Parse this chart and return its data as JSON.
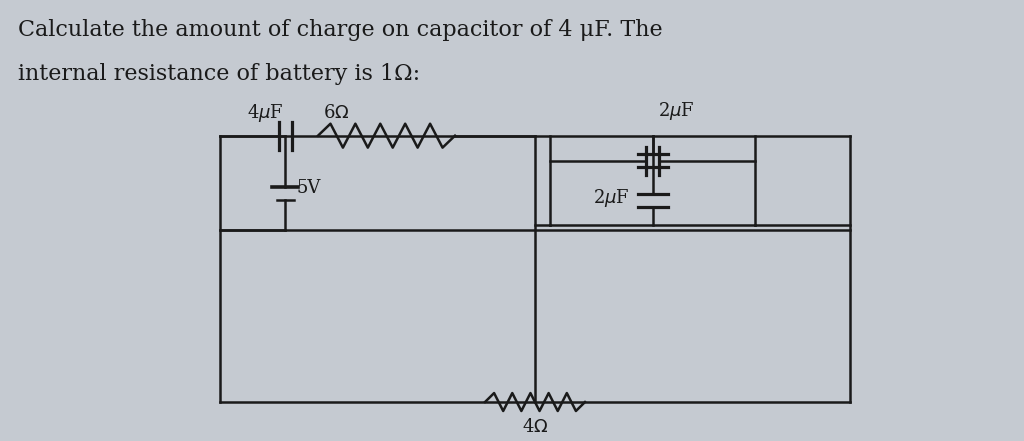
{
  "title_line1": "Calculate the amount of charge on capacitor of 4 μF. The",
  "title_line2": "internal resistance of battery is 1Ω:",
  "bg_color": "#c5cad1",
  "text_color": "#1a1a1a",
  "title_fontsize": 16,
  "label_fontsize": 13
}
